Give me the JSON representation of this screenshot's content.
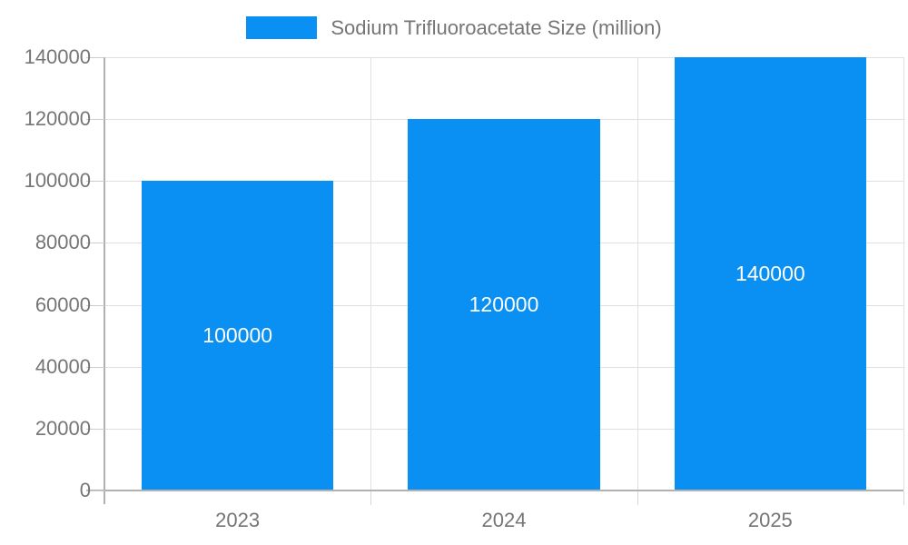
{
  "legend": {
    "label": "Sodium Trifluoroacetate Size (million)"
  },
  "chart_data": {
    "type": "bar",
    "title": "Sodium Trifluoroacetate Size (million)",
    "categories": [
      "2023",
      "2024",
      "2025"
    ],
    "values": [
      100000,
      120000,
      140000
    ],
    "series": [
      {
        "name": "Sodium Trifluoroacetate Size (million)",
        "values": [
          100000,
          120000,
          140000
        ]
      }
    ],
    "data_labels": [
      "100000",
      "120000",
      "140000"
    ],
    "xlabel": "",
    "ylabel": "",
    "ylim": [
      0,
      140000
    ],
    "ytick_step": 20000,
    "yticks": [
      0,
      20000,
      40000,
      60000,
      80000,
      100000,
      120000,
      140000
    ],
    "grid": true,
    "legend_position": "top",
    "bar_color": "#0a8ff2",
    "bar_label_color": "#ffffff",
    "axis_text_color": "#757575",
    "gridline_color": "#e0e0e0",
    "axis_line_color": "#b1b1b1",
    "background_color": "#ffffff"
  }
}
